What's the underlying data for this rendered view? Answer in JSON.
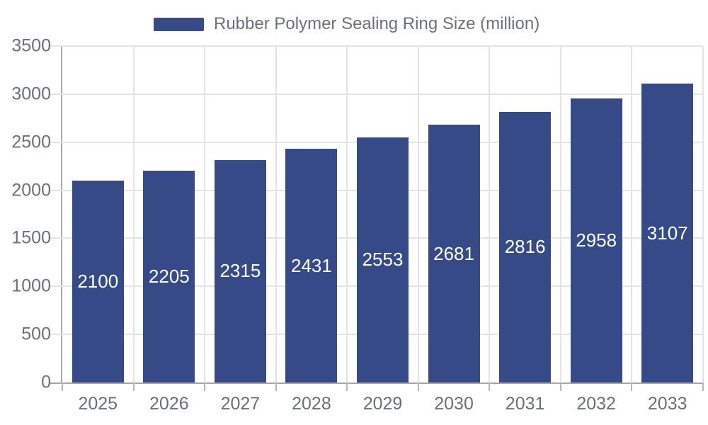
{
  "legend": {
    "items": [
      {
        "label": "Rubber Polymer Sealing Ring Size (million)",
        "color": "#354A86"
      }
    ]
  },
  "chart_data": {
    "type": "bar",
    "title": "Rubber Polymer Sealing Ring Size (million)",
    "categories": [
      "2025",
      "2026",
      "2027",
      "2028",
      "2029",
      "2030",
      "2031",
      "2032",
      "2033"
    ],
    "series": [
      {
        "name": "Rubber Polymer Sealing Ring Size (million)",
        "color": "#354A86",
        "values": [
          2100,
          2205,
          2315,
          2431,
          2553,
          2681,
          2816,
          2958,
          3107
        ]
      }
    ],
    "value_labels": {
      "visible": true,
      "position": "inside-center",
      "color": "#FFFFFF"
    },
    "xlabel": "",
    "ylabel": "",
    "ylim": [
      0,
      3500
    ],
    "yticks": [
      0,
      500,
      1000,
      1500,
      2000,
      2500,
      3000,
      3500
    ],
    "grid": true,
    "legend_position": "top",
    "colors": {
      "bar": "#354A86",
      "axis_text": "#6E7079",
      "grid_line": "#E4E4E4",
      "axis_line": "#A8A8A8",
      "background": "#FFFFFF"
    }
  }
}
